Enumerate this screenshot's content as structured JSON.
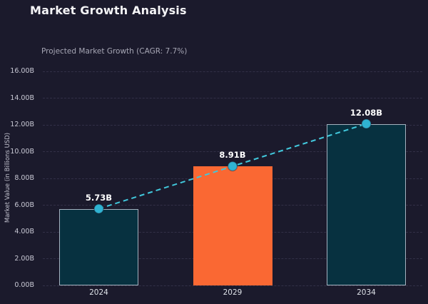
{
  "title": "Market Growth Analysis",
  "subtitle": "Projected Market Growth (CAGR: 7.7%)",
  "chart_data": {
    "type": "bar",
    "title": "Market Growth Analysis",
    "subtitle": "Projected Market Growth (CAGR: 7.7%)",
    "categories": [
      "2024",
      "2029",
      "2034"
    ],
    "values": [
      5.73,
      8.91,
      12.08
    ],
    "value_labels": [
      "5.73B",
      "8.91B",
      "12.08B"
    ],
    "series": [
      {
        "name": "Market Value",
        "values": [
          5.73,
          8.91,
          12.08
        ]
      }
    ],
    "xlabel": "",
    "ylabel": "Market Value (in Billions USD)",
    "ylim": [
      0,
      16
    ],
    "y_ticks": [
      {
        "value": 0,
        "label": "0.00B"
      },
      {
        "value": 2,
        "label": "2.00B"
      },
      {
        "value": 4,
        "label": "4.00B"
      },
      {
        "value": 6,
        "label": "6.00B"
      },
      {
        "value": 8,
        "label": "8.00B"
      },
      {
        "value": 10,
        "label": "10.00B"
      },
      {
        "value": 12,
        "label": "12.00B"
      },
      {
        "value": 14,
        "label": "14.00B"
      },
      {
        "value": 16,
        "label": "16.00B"
      }
    ],
    "grid": true,
    "legend": "none",
    "trend_line": {
      "type": "dashed",
      "connects": "bar tops",
      "color": "#41c7db",
      "marker": "circle",
      "marker_color": "#2fb3d2"
    },
    "colors": {
      "background": "#1b1a2c",
      "bar_fills": [
        "#073140",
        "#fa6833",
        "#073140"
      ],
      "bar_borders": [
        "#a4b2bf",
        "none",
        "#a4b2bf"
      ],
      "title_text": "#f4f4f6",
      "subtitle_text": "#a6a6b4",
      "tick_text": "#c9c9d5",
      "value_label_text": "#ffffff"
    }
  }
}
